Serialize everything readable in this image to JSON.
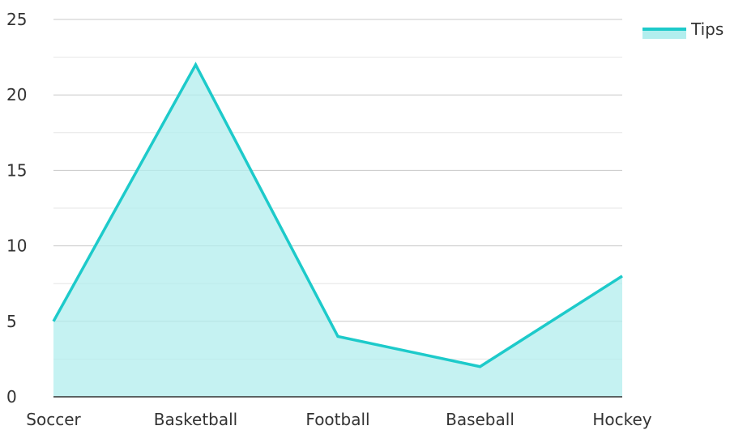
{
  "chart_data": {
    "type": "area",
    "title": "",
    "xlabel": "",
    "ylabel": "",
    "categories": [
      "Soccer",
      "Basketball",
      "Football",
      "Baseball",
      "Hockey"
    ],
    "series": [
      {
        "name": "Tips",
        "values": [
          5,
          22,
          4,
          2,
          8
        ]
      }
    ],
    "ylim": [
      0,
      25
    ],
    "yticks": [
      0,
      5,
      10,
      15,
      20,
      25
    ],
    "minor_grid_step": 2.5,
    "grid": true,
    "legend_position": "top-right",
    "colors": {
      "line": "#1dcaca",
      "fill": "#b2eeee",
      "major_grid": "#c8c8c8",
      "minor_grid": "#e6e6e6",
      "axis": "#333333"
    }
  }
}
